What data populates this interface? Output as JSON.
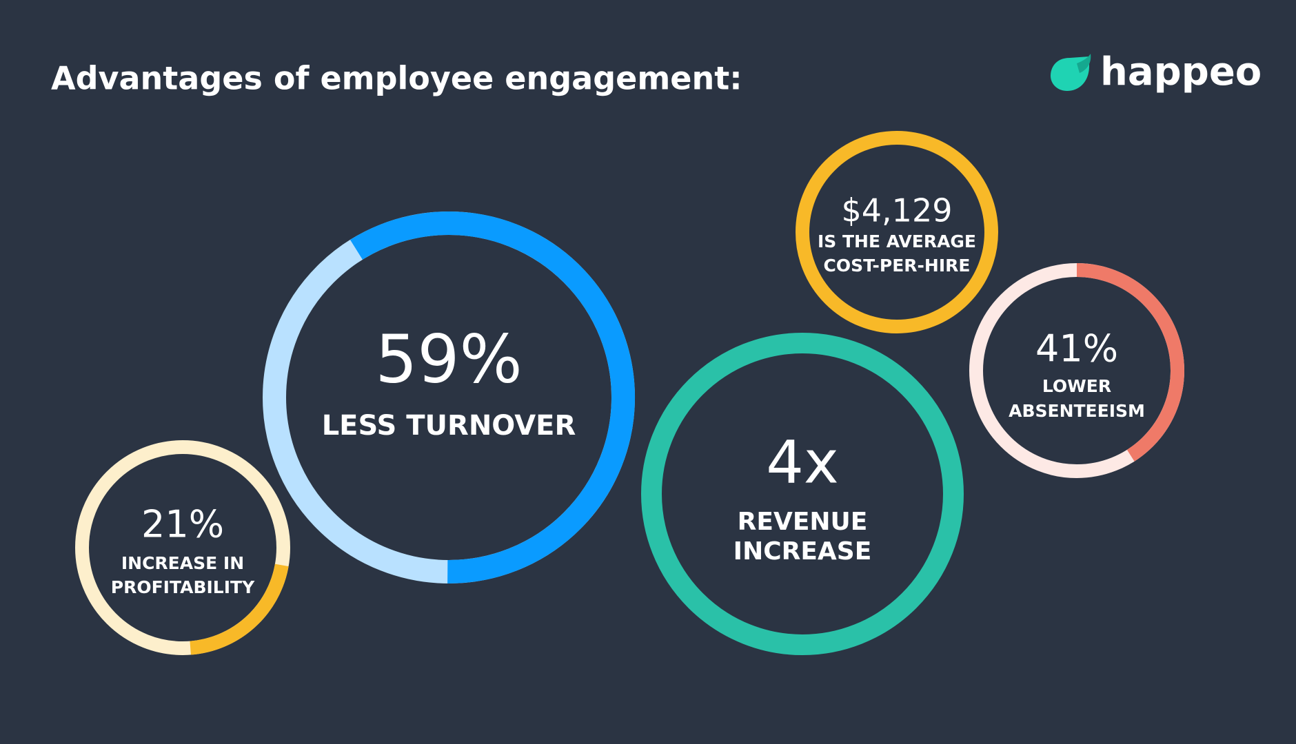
{
  "header": {
    "title": "Advantages of employee engagement:"
  },
  "logo": {
    "text": "happeo"
  },
  "stats": [
    {
      "value": 59,
      "value_label": "59%",
      "caption": [
        "LESS TURNOVER"
      ],
      "color": "#0a9bff",
      "track_color": "#b9e1ff"
    },
    {
      "value": 21,
      "value_label": "21%",
      "caption": [
        "INCREASE IN",
        "PROFITABILITY"
      ],
      "color": "#f8b928",
      "track_color": "#fdefcc"
    },
    {
      "value_label": "$4,129",
      "caption": [
        "IS THE AVERAGE",
        "COST-PER-HIRE"
      ],
      "color": "#f8b928"
    },
    {
      "value_label": "4x",
      "caption": [
        "REVENUE",
        "INCREASE"
      ],
      "color": "#2ac1a8"
    },
    {
      "value": 41,
      "value_label": "41%",
      "caption": [
        "LOWER",
        "ABSENTEEISM"
      ],
      "color": "#ef7a68",
      "track_color": "#fde9e5"
    }
  ]
}
